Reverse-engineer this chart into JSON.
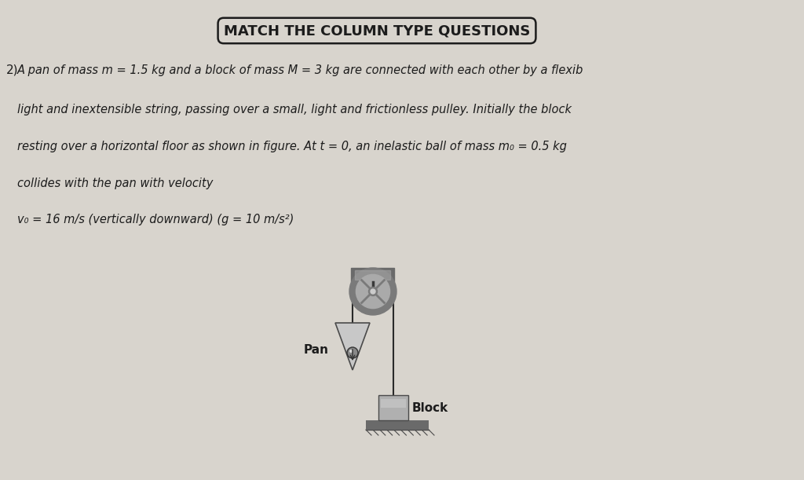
{
  "background_color": "#d8d4cd",
  "title": "MATCH THE COLUMN TYPE QUESTIONS",
  "title_fontsize": 13,
  "line1": "A pan of mass m = 1.5 kg and a block of mass M = 3 kg are connected with each other by a flexib",
  "line2": "light and inextensible string, passing over a small, light and frictionless pulley. Initially the block",
  "line3": "resting over a horizontal floor as shown in figure. At t = 0, an inelastic ball of mass m₀ = 0.5 kg",
  "line4": "collides with the pan with velocity",
  "line5": "v₀ = 16 m/s (vertically downward) (g = 10 m/s²)",
  "pan_label": "Pan",
  "block_label": "Block",
  "fig_width": 10.24,
  "fig_height": 6.11,
  "text_color": "#1c1c1c",
  "rope_color": "#2a2a2a",
  "support_color": "#6a6a6a",
  "pulley_outer_color": "#7a7a7a",
  "pulley_inner_color": "#aaaaaa",
  "pan_color": "#7a7a7a",
  "block_color": "#9a9a9a",
  "floor_color": "#6a6a6a"
}
